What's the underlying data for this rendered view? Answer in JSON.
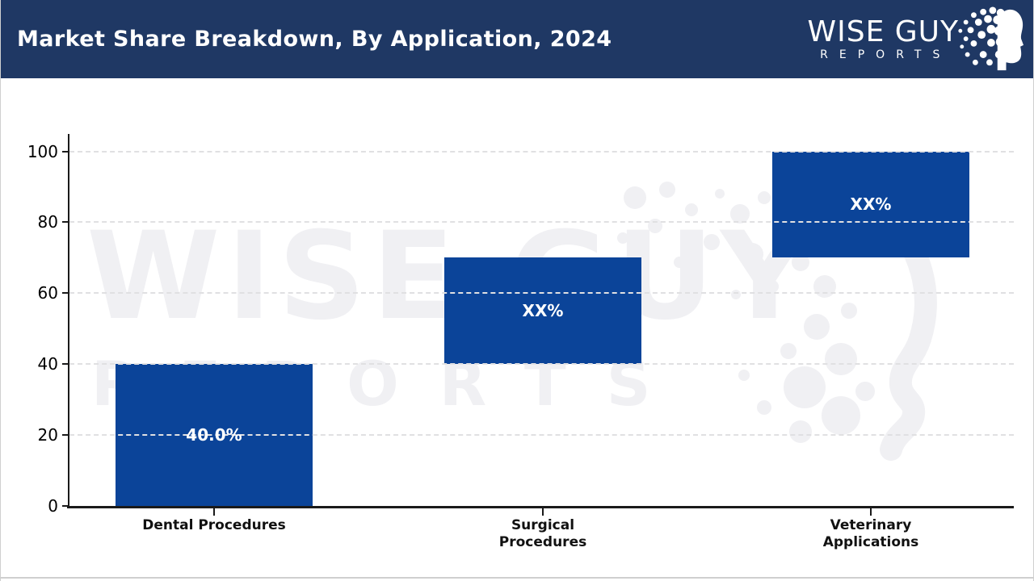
{
  "header": {
    "title": "Market Share Breakdown, By Application, 2024",
    "logo": {
      "wordmark": "WISE GUY",
      "subtext": "REPORTS",
      "icon": "face-profile-dots"
    }
  },
  "watermark": {
    "line1": "WISE GUY",
    "line2": "REPORTS"
  },
  "chart_data": {
    "type": "bar",
    "subtype": "stacked-waterfall",
    "title": "Market Share Breakdown, By Application, 2024",
    "categories": [
      "Dental Procedures",
      "Surgical Procedures",
      "Veterinary Applications"
    ],
    "category_lines": [
      [
        "Dental Procedures"
      ],
      [
        "Surgical",
        "Procedures"
      ],
      [
        "Veterinary",
        "Applications"
      ]
    ],
    "segments": [
      {
        "category": "Dental Procedures",
        "start": 0,
        "end": 40,
        "label": "40.0%"
      },
      {
        "category": "Surgical Procedures",
        "start": 40,
        "end": 70,
        "label": "XX%"
      },
      {
        "category": "Veterinary Applications",
        "start": 70,
        "end": 100,
        "label": "XX%"
      }
    ],
    "yticks": [
      0,
      20,
      40,
      60,
      80,
      100
    ],
    "ylim": [
      0,
      105
    ],
    "xlabel": "",
    "ylabel": "",
    "grid": "dashed-horizontal-over-bars",
    "legend": "none",
    "bar_color": "#0b4499",
    "bar_label_color": "#ffffff",
    "axis_color": "#1a1a1a",
    "header_color": "#1f3864",
    "watermark_color": "#f0f0f3"
  }
}
